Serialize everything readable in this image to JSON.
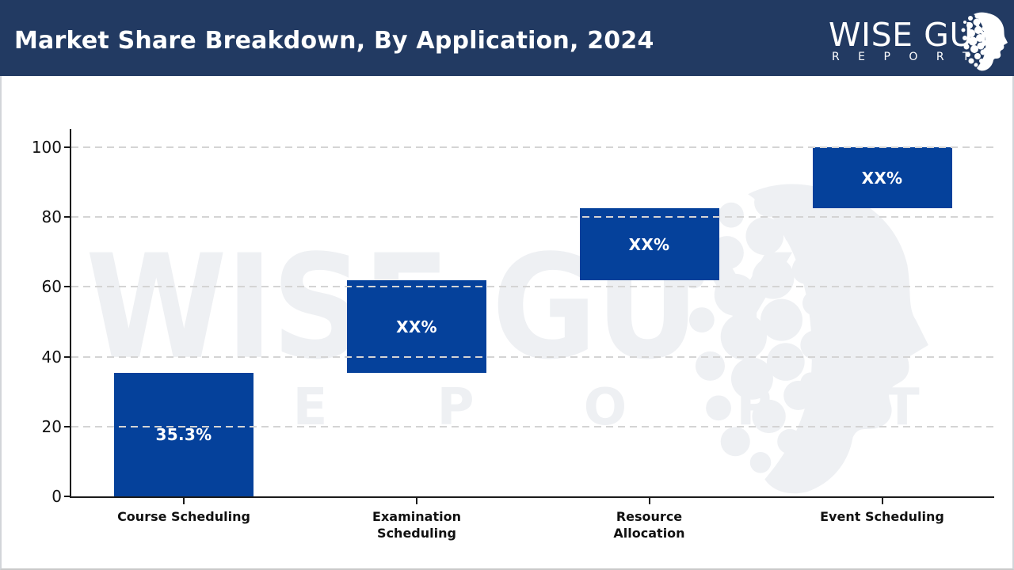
{
  "header": {
    "title": "Market Share Breakdown, By Application, 2024",
    "logo": {
      "name_line": "WISE GUY",
      "sub_line": "R E P O R T S"
    }
  },
  "watermark": {
    "name_line": "WISE GUY",
    "sub_line": "R E P O R T S"
  },
  "chart_data": {
    "type": "bar",
    "variant": "waterfall",
    "title": "Market Share Breakdown, By Application, 2024",
    "categories": [
      "Course Scheduling",
      "Examination Scheduling",
      "Resource Allocation",
      "Event Scheduling"
    ],
    "category_lines": [
      [
        "Course Scheduling"
      ],
      [
        "Examination",
        "Scheduling"
      ],
      [
        "Resource",
        "Allocation"
      ],
      [
        "Event Scheduling"
      ]
    ],
    "segments": [
      {
        "category": "Course Scheduling",
        "start": 0,
        "end": 35.3,
        "label": "35.3%"
      },
      {
        "category": "Examination Scheduling",
        "start": 35.3,
        "end": 61.9,
        "label": "XX%"
      },
      {
        "category": "Resource Allocation",
        "start": 61.9,
        "end": 82.4,
        "label": "XX%"
      },
      {
        "category": "Event Scheduling",
        "start": 82.4,
        "end": 100,
        "label": "XX%"
      }
    ],
    "yticks": [
      0,
      20,
      40,
      60,
      80,
      100
    ],
    "ylim": [
      0,
      105
    ],
    "xlabel": "",
    "ylabel": "",
    "legend": "none",
    "grid": {
      "horizontal": true,
      "style": "dashed"
    },
    "colors": {
      "bar": "#05419b",
      "header_bg": "#223a62",
      "axis": "#1a1a1a",
      "bar_label_text": "#ffffff",
      "gridline": "#d4d4d4",
      "watermark": "#eef0f3"
    }
  }
}
